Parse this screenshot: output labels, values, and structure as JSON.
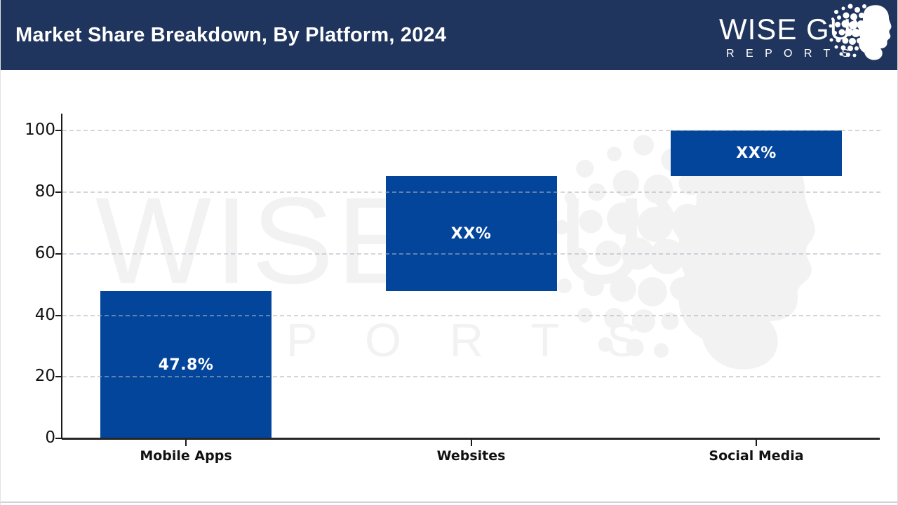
{
  "header": {
    "title": "Market Share Breakdown, By Platform, 2024"
  },
  "logo": {
    "line1": "WISE GUY",
    "line2": "R E P O R T S"
  },
  "chart_data": {
    "type": "bar",
    "subtype": "waterfall-floating-bars",
    "title": "Market Share Breakdown, By Platform, 2024",
    "categories": [
      "Mobile Apps",
      "Websites",
      "Social Media"
    ],
    "segments": [
      {
        "category": "Mobile Apps",
        "start": 0,
        "end": 47.8,
        "label": "47.8%"
      },
      {
        "category": "Websites",
        "start": 47.8,
        "end": 85.3,
        "label": "XX%"
      },
      {
        "category": "Social Media",
        "start": 85.3,
        "end": 100,
        "label": "XX%"
      }
    ],
    "xlabel": "",
    "ylabel": "",
    "yticks": [
      0,
      20,
      40,
      60,
      80,
      100
    ],
    "ylim": [
      0,
      105.5
    ],
    "grid": "horizontal dashed",
    "legend": "none",
    "bar_color": "#04459c",
    "value_label_color": "#ffffff",
    "header_color": "#20355e",
    "watermark_text": "WISE GUY REPORTS"
  }
}
